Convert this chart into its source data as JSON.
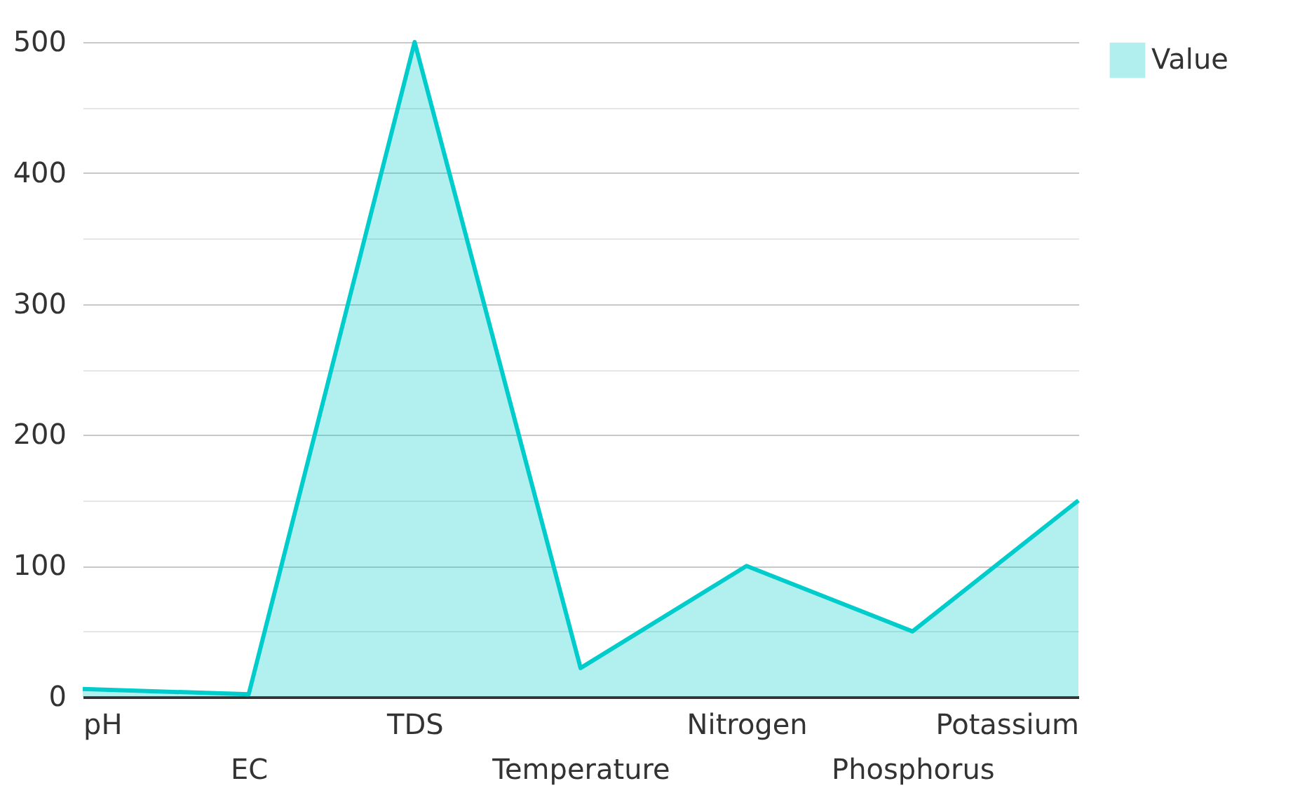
{
  "chart_data": {
    "type": "area",
    "categories": [
      "pH",
      "EC",
      "TDS",
      "Temperature",
      "Nitrogen",
      "Phosphorus",
      "Potassium"
    ],
    "series": [
      {
        "name": "Value",
        "color": "#00cccc",
        "values": [
          6,
          2,
          500,
          22,
          100,
          50,
          150
        ]
      }
    ],
    "ylim": [
      0,
      500
    ],
    "yticks": [
      0,
      {
        "value": 50,
        "label": null
      },
      100,
      {
        "value": 150,
        "label": null
      },
      200,
      {
        "value": 250,
        "label": null
      },
      300,
      {
        "value": 350,
        "label": null
      },
      400,
      {
        "value": 450,
        "label": null
      },
      500
    ],
    "grid": "y",
    "legend": "top right"
  }
}
